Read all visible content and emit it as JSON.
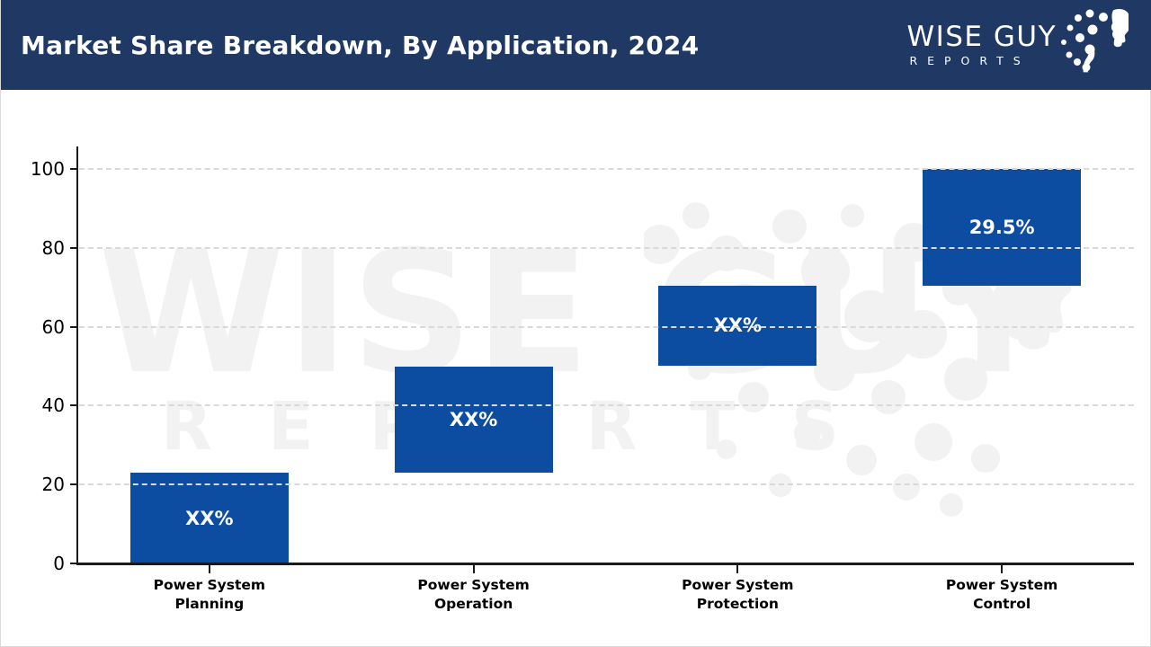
{
  "header": {
    "title": "Market Share Breakdown, By Application, 2024",
    "logo_line1": "WISE GUY",
    "logo_line2": "REPORTS",
    "bg_color": "#1F3864"
  },
  "watermark": {
    "line1": "WISE GUY",
    "line2": "REPORTS"
  },
  "chart_data": {
    "type": "bar",
    "subtype": "floating-waterfall",
    "title": "Market Share Breakdown, By Application, 2024",
    "categories": [
      "Power System Planning",
      "Power System Operation",
      "Power System Protection",
      "Power System Control"
    ],
    "series": [
      {
        "name": "Market Share",
        "ranges": [
          [
            0,
            23
          ],
          [
            23,
            50
          ],
          [
            50,
            70.5
          ],
          [
            70.5,
            100
          ]
        ]
      }
    ],
    "bar_labels": [
      "XX%",
      "XX%",
      "XX%",
      "29.5%"
    ],
    "xlabel": "",
    "ylabel": "",
    "ylim": [
      0,
      100
    ],
    "yticks": [
      0,
      20,
      40,
      60,
      80,
      100
    ],
    "grid": "horizontal-dashed",
    "grid_above_bars": true,
    "bar_color": "#0C4DA2",
    "bar_label_color": "#FFFFFF",
    "axis_color": "#1a1a1a",
    "gridline_color": "#d9d9d9"
  }
}
